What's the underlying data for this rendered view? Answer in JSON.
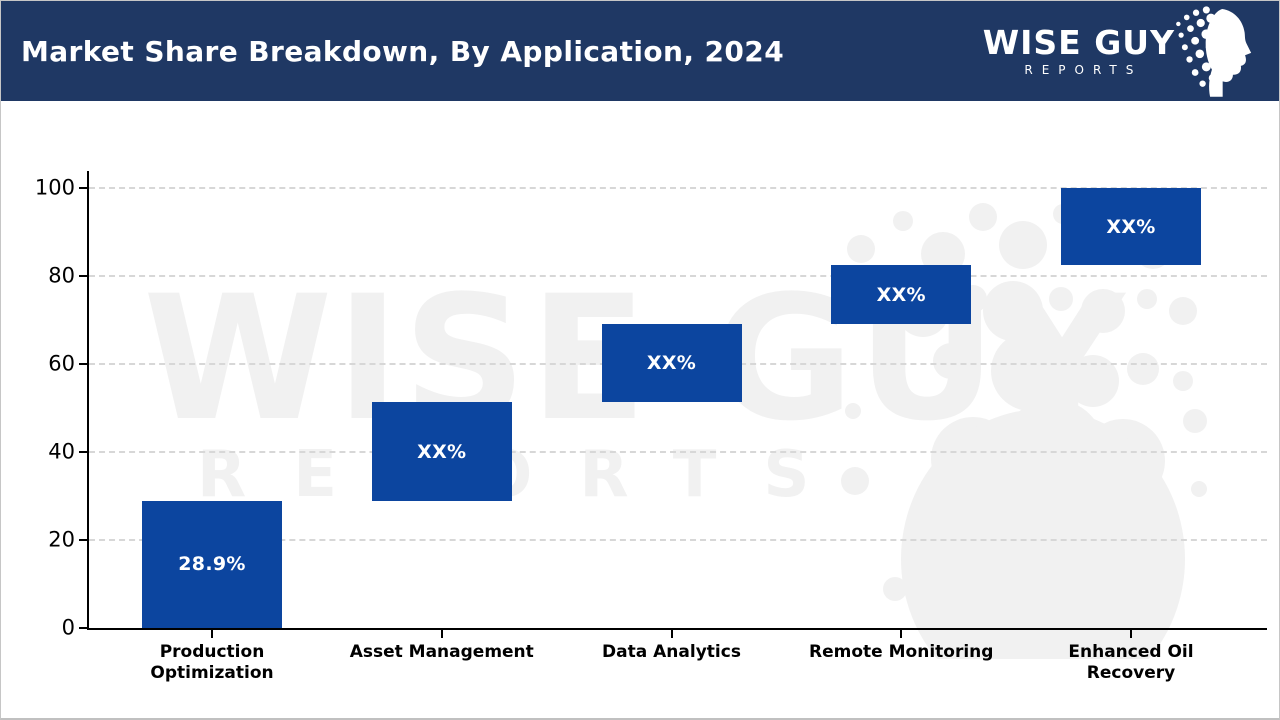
{
  "header": {
    "title": "Market Share Breakdown, By Application, 2024",
    "logo": {
      "wordmark": "WISE GUY",
      "subtext": "REPORTS"
    }
  },
  "watermark": {
    "line1": "WISE GUY",
    "line2": "REPORTS"
  },
  "colors": {
    "header_bg": "#1f3864",
    "bar": "#0c459f",
    "bar_label": "#ffffff",
    "grid": "#d7d7d7",
    "axis": "#000000",
    "watermark": "#f1f1f1"
  },
  "chart_data": {
    "type": "bar",
    "subtype": "floating-waterfall",
    "title": "Market Share Breakdown, By Application, 2024",
    "xlabel": "",
    "ylabel": "",
    "ylim": [
      0,
      100
    ],
    "yticks": [
      0,
      20,
      40,
      60,
      80,
      100
    ],
    "grid": "horizontal-dashed",
    "legend": "none",
    "categories": [
      "Production Optimization",
      "Asset Management",
      "Data Analytics",
      "Remote Monitoring",
      "Enhanced Oil Recovery"
    ],
    "tick_labels": [
      "Production\nOptimization",
      "Asset Management",
      "Data Analytics",
      "Remote Monitoring",
      "Enhanced Oil\nRecovery"
    ],
    "segments": [
      {
        "category": "Production Optimization",
        "start": 0,
        "end": 28.9,
        "label": "28.9%"
      },
      {
        "category": "Asset Management",
        "start": 28.9,
        "end": 51.3,
        "label": "XX%"
      },
      {
        "category": "Data Analytics",
        "start": 51.3,
        "end": 69.0,
        "label": "XX%"
      },
      {
        "category": "Remote Monitoring",
        "start": 69.0,
        "end": 82.5,
        "label": "XX%"
      },
      {
        "category": "Enhanced Oil Recovery",
        "start": 82.5,
        "end": 100,
        "label": "XX%"
      }
    ]
  }
}
